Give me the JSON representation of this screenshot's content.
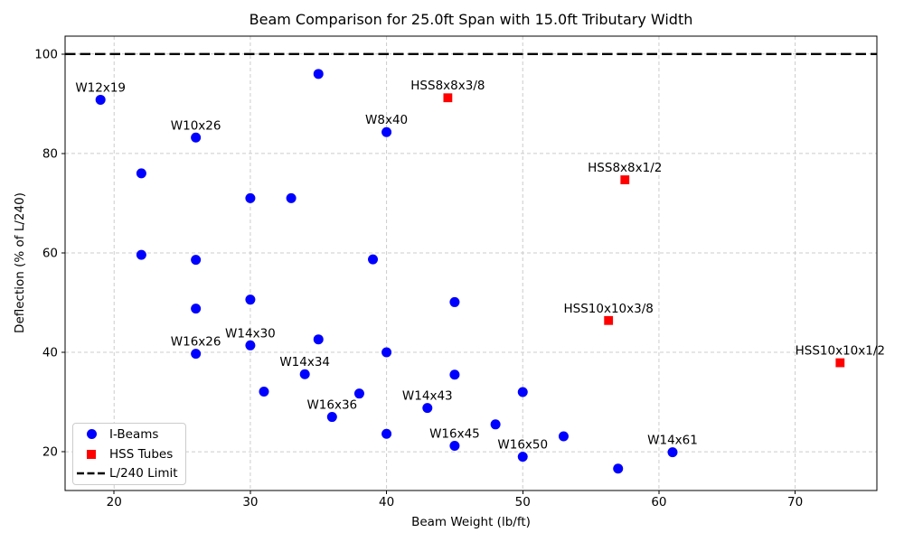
{
  "chart_data": {
    "type": "scatter",
    "title": "Beam Comparison for 25.0ft Span with 15.0ft Tributary Width",
    "xlabel": "Beam Weight (lb/ft)",
    "ylabel": "Deflection (% of L/240)",
    "xlim": [
      16.4,
      76.0
    ],
    "ylim": [
      12.2,
      103.6
    ],
    "xticks": [
      20,
      30,
      40,
      50,
      60,
      70
    ],
    "yticks": [
      20,
      40,
      60,
      80,
      100
    ],
    "grid": true,
    "grid_color": "#cccccc",
    "limit_line": {
      "y": 100,
      "label": "L/240 Limit",
      "color": "#000000",
      "style": "dashed"
    },
    "series": [
      {
        "name": "I-Beams",
        "marker": "circle",
        "color": "#0000ff",
        "points": [
          {
            "x": 19,
            "y": 90.8,
            "label": "W12x19"
          },
          {
            "x": 22,
            "y": 76.0
          },
          {
            "x": 22,
            "y": 59.6
          },
          {
            "x": 26,
            "y": 83.2,
            "label": "W10x26"
          },
          {
            "x": 26,
            "y": 58.6
          },
          {
            "x": 26,
            "y": 48.8
          },
          {
            "x": 26,
            "y": 39.7,
            "label": "W16x26"
          },
          {
            "x": 30,
            "y": 71.0
          },
          {
            "x": 30,
            "y": 50.6
          },
          {
            "x": 30,
            "y": 41.4,
            "label": "W14x30"
          },
          {
            "x": 31,
            "y": 32.1
          },
          {
            "x": 33,
            "y": 71.0
          },
          {
            "x": 34,
            "y": 35.6,
            "label": "W14x34"
          },
          {
            "x": 35,
            "y": 96.0
          },
          {
            "x": 35,
            "y": 42.6
          },
          {
            "x": 36,
            "y": 27.0,
            "label": "W16x36"
          },
          {
            "x": 38,
            "y": 31.7
          },
          {
            "x": 39,
            "y": 58.7
          },
          {
            "x": 40,
            "y": 84.3,
            "label": "W8x40"
          },
          {
            "x": 40,
            "y": 40.0
          },
          {
            "x": 40,
            "y": 23.6
          },
          {
            "x": 43,
            "y": 28.8,
            "label": "W14x43"
          },
          {
            "x": 45,
            "y": 50.1
          },
          {
            "x": 45,
            "y": 35.5
          },
          {
            "x": 45,
            "y": 21.2,
            "label": "W16x45"
          },
          {
            "x": 48,
            "y": 25.5
          },
          {
            "x": 50,
            "y": 32.0
          },
          {
            "x": 50,
            "y": 19.0,
            "label": "W16x50"
          },
          {
            "x": 53,
            "y": 23.1
          },
          {
            "x": 57,
            "y": 16.6
          },
          {
            "x": 61,
            "y": 19.9,
            "label": "W14x61"
          }
        ]
      },
      {
        "name": "HSS Tubes",
        "marker": "square",
        "color": "#ff0000",
        "points": [
          {
            "x": 44.5,
            "y": 91.2,
            "label": "HSS8x8x3/8"
          },
          {
            "x": 57.5,
            "y": 74.7,
            "label": "HSS8x8x1/2"
          },
          {
            "x": 56.3,
            "y": 46.4,
            "label": "HSS10x10x3/8"
          },
          {
            "x": 73.3,
            "y": 37.9,
            "label": "HSS10x10x1/2"
          }
        ]
      }
    ],
    "legend": {
      "position": "lower left",
      "items": [
        {
          "label": "I-Beams",
          "marker": "circle",
          "color": "#0000ff"
        },
        {
          "label": "HSS Tubes",
          "marker": "square",
          "color": "#ff0000"
        },
        {
          "label": "L/240 Limit",
          "marker": "dashed-line",
          "color": "#000000"
        }
      ]
    }
  }
}
